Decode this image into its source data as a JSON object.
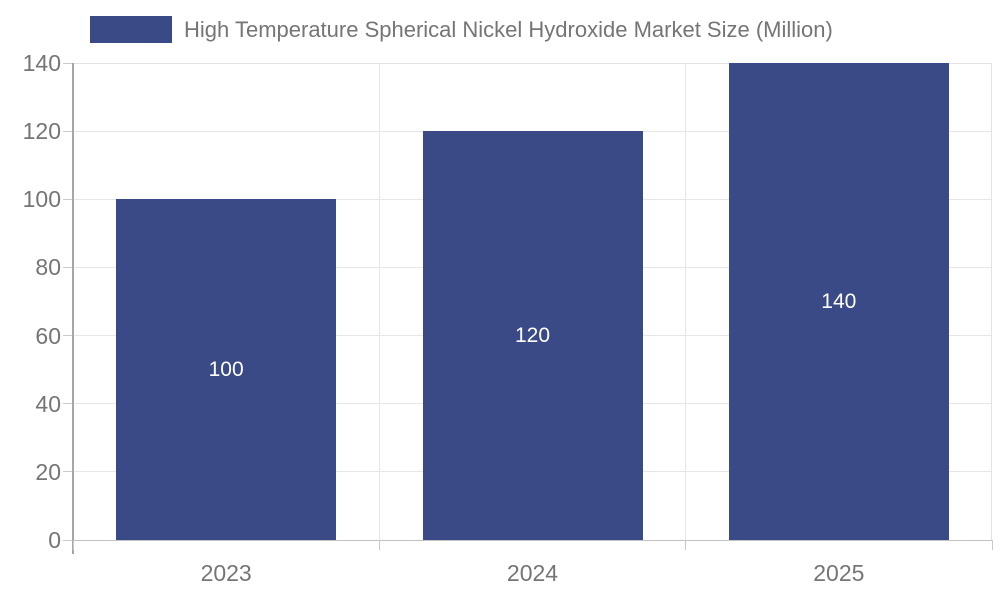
{
  "chart_data": {
    "type": "bar",
    "title": "",
    "xlabel": "",
    "ylabel": "",
    "legend": {
      "label": "High Temperature Spherical Nickel Hydroxide Market Size (Million)",
      "position": "top-left"
    },
    "categories": [
      "2023",
      "2024",
      "2025"
    ],
    "series": [
      {
        "name": "High Temperature Spherical Nickel Hydroxide Market Size (Million)",
        "values": [
          100,
          120,
          140
        ]
      }
    ],
    "value_labels": [
      "100",
      "120",
      "140"
    ],
    "ylim": [
      0,
      140
    ],
    "yticks": [
      0,
      20,
      40,
      60,
      80,
      100,
      120,
      140
    ],
    "grid": true,
    "colors": {
      "bar": "#394a86",
      "bar_value_text": "#ffffff",
      "legend_text": "#757575",
      "tick_text": "#757575",
      "y_axis_line": "#a6a6a6",
      "x_axis_line": "#c2c2c2",
      "gridline": "#e6e6e6",
      "border": "#e2e2e2",
      "tick_mark": "#c9c9c9",
      "background": "#ffffff"
    }
  }
}
